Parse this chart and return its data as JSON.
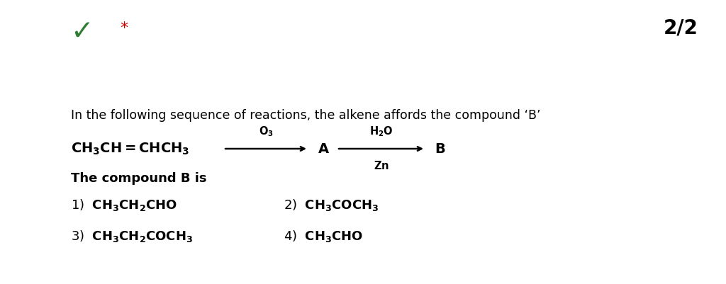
{
  "background_color": "#ffffff",
  "check_color": "#2e7d32",
  "check_symbol": "✓",
  "star_symbol": "*",
  "star_color": "#cc0000",
  "score_text": "2/2",
  "score_color": "#000000",
  "score_fontsize": 20,
  "question_text": "In the following sequence of reactions, the alkene affords the compound ‘B’",
  "question_fontsize": 12.5,
  "bold_label": "The compound B is",
  "bold_label_fontsize": 13
}
